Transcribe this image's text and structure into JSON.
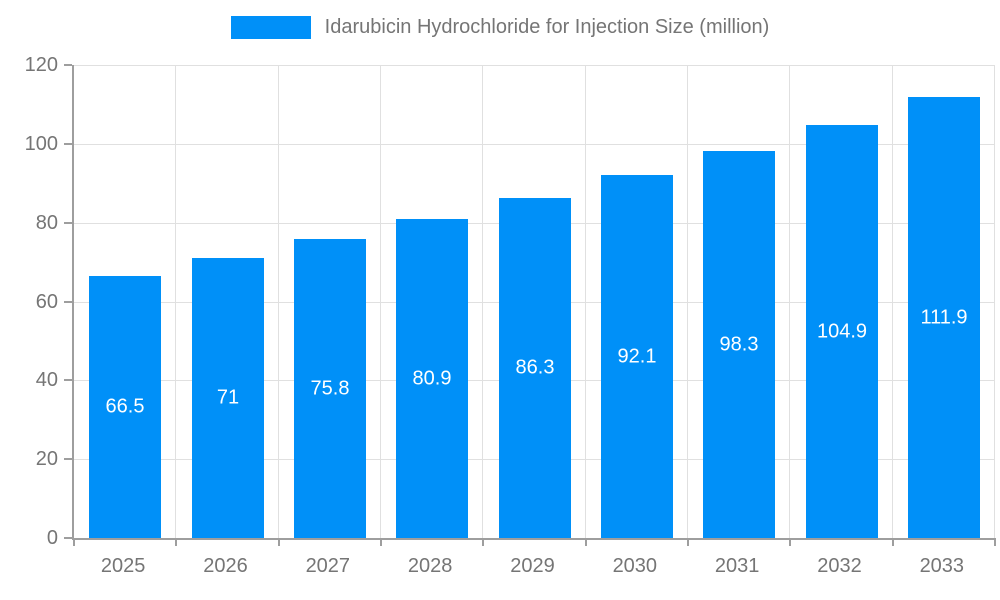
{
  "chart_data": {
    "type": "bar",
    "title": "Idarubicin Hydrochloride for Injection Size (million)",
    "categories": [
      "2025",
      "2026",
      "2027",
      "2028",
      "2029",
      "2030",
      "2031",
      "2032",
      "2033"
    ],
    "values": [
      66.5,
      71,
      75.8,
      80.9,
      86.3,
      92.1,
      98.3,
      104.9,
      111.9
    ],
    "value_labels": [
      "66.5",
      "71",
      "75.8",
      "80.9",
      "86.3",
      "92.1",
      "98.3",
      "104.9",
      "111.9"
    ],
    "xlabel": "",
    "ylabel": "",
    "ylim": [
      0,
      120
    ],
    "yticks": [
      0,
      20,
      40,
      60,
      80,
      100,
      120
    ],
    "grid": true,
    "legend_position": "top-center",
    "colors": {
      "bar": "#0090f8",
      "value_label": "#ffffff",
      "axis_text": "#757575",
      "grid_line": "#e0e0e0",
      "axis_line": "#9e9e9e",
      "background": "#ffffff"
    }
  }
}
